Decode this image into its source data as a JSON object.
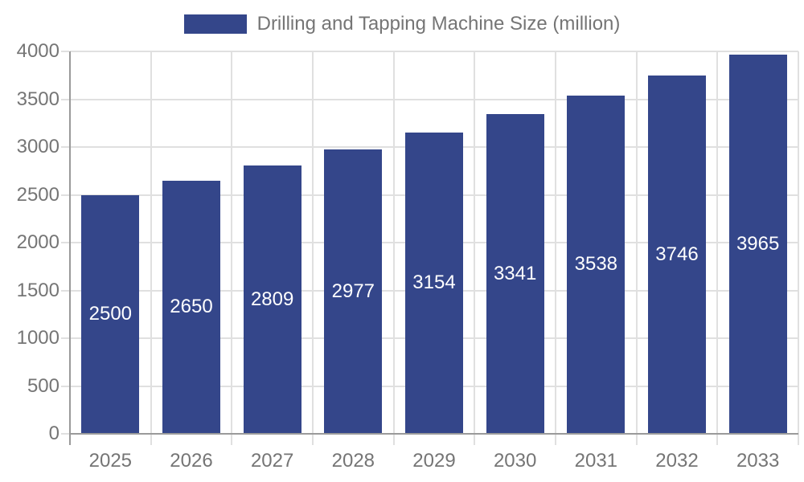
{
  "legend": {
    "label": "Drilling and Tapping Machine Size (million)"
  },
  "chart_data": {
    "type": "bar",
    "title": "Drilling and Tapping Machine Size (million)",
    "categories": [
      "2025",
      "2026",
      "2027",
      "2028",
      "2029",
      "2030",
      "2031",
      "2032",
      "2033"
    ],
    "series": [
      {
        "name": "Drilling and Tapping Machine Size (million)",
        "values": [
          2500,
          2650,
          2809,
          2977,
          3154,
          3341,
          3538,
          3746,
          3965
        ]
      }
    ],
    "xlabel": "",
    "ylabel": "",
    "ylim": [
      0,
      4000
    ],
    "ytick_step": 500,
    "ytick_labels": [
      "0",
      "500",
      "1000",
      "1500",
      "2000",
      "2500",
      "3000",
      "3500",
      "4000"
    ],
    "grid": true,
    "legend_position": "top-center",
    "value_labels": "inside-center",
    "colors": {
      "bar": "#34468a",
      "value_label": "#ffffff",
      "axis_text": "#757575",
      "legend_text": "#757575",
      "grid_line": "#e0e0e0",
      "axis_line": "#9a9a9a",
      "background": "#ffffff"
    }
  }
}
